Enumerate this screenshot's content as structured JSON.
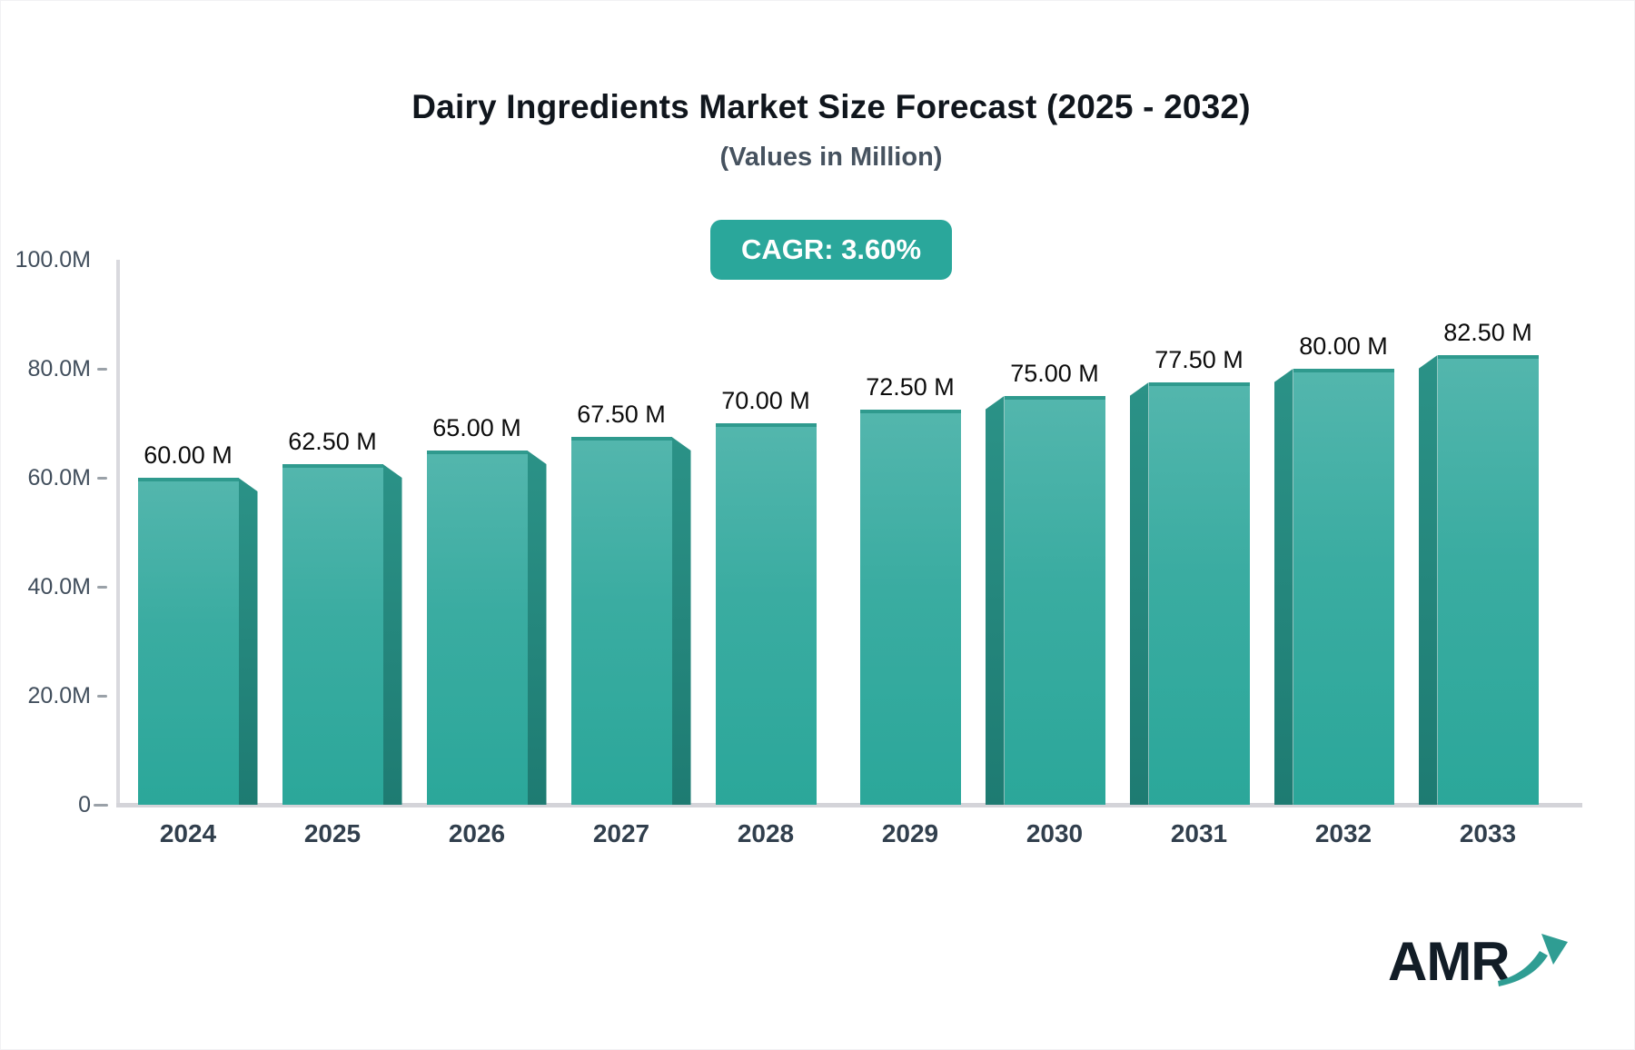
{
  "header": {
    "title": "Dairy Ingredients Market Size Forecast (2025 - 2032)",
    "subtitle": "(Values in Million)",
    "cagr_badge": "CAGR: 3.60%"
  },
  "chart_data": {
    "type": "bar",
    "title": "Dairy Ingredients Market Size Forecast (2025 - 2032)",
    "subtitle": "(Values in Million)",
    "annotation": "CAGR: 3.60%",
    "categories": [
      "2024",
      "2025",
      "2026",
      "2027",
      "2028",
      "2029",
      "2030",
      "2031",
      "2032",
      "2033"
    ],
    "values": [
      60,
      62.5,
      65,
      67.5,
      70,
      72.5,
      75,
      77.5,
      80,
      82.5
    ],
    "bar_labels": [
      "60.00 M",
      "62.50 M",
      "65.00 M",
      "67.50 M",
      "70.00 M",
      "72.50 M",
      "75.00 M",
      "77.50 M",
      "80.00 M",
      "82.50 M"
    ],
    "unit": "Million",
    "xlabel": "",
    "ylabel": "",
    "ylim": [
      0,
      100
    ],
    "yticks": [
      {
        "value": 100,
        "label": "100.0M"
      },
      {
        "value": 80,
        "label": "80.0M"
      },
      {
        "value": 60,
        "label": "60.0M"
      },
      {
        "value": 40,
        "label": "40.0M"
      },
      {
        "value": 20,
        "label": "20.0M"
      },
      {
        "value": 0,
        "label": "0"
      }
    ],
    "grid": "off",
    "legend": "none",
    "bar_color": "#35AA9E",
    "bar_side_color": "#1E7B72",
    "accent_color": "#2AA79B"
  },
  "logo": {
    "text": "AMR",
    "arrow_icon": "growth-arrow-icon",
    "arrow_color": "#2F9D93"
  }
}
